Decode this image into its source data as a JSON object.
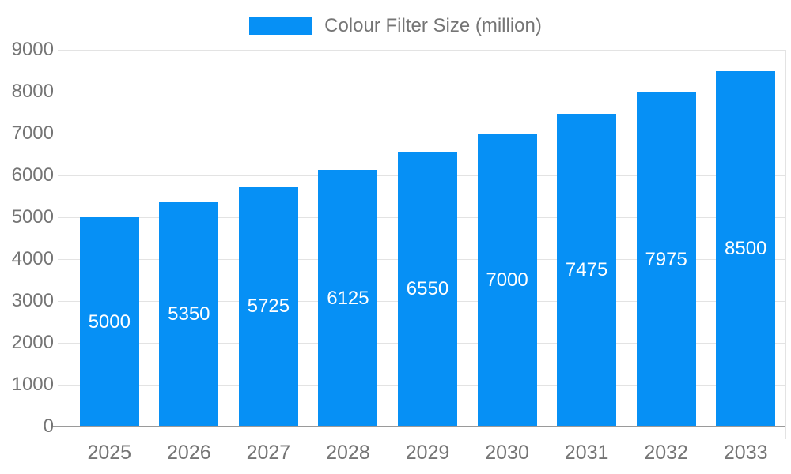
{
  "legend": {
    "label": "Colour Filter Size (million)"
  },
  "chart_data": {
    "type": "bar",
    "title": "",
    "categories": [
      "2025",
      "2026",
      "2027",
      "2028",
      "2029",
      "2030",
      "2031",
      "2032",
      "2033"
    ],
    "series": [
      {
        "name": "Colour Filter Size (million)",
        "values": [
          5000,
          5350,
          5725,
          6125,
          6550,
          7000,
          7475,
          7975,
          8500
        ]
      }
    ],
    "xlabel": "",
    "ylabel": "",
    "ylim": [
      0,
      9000
    ],
    "ytick_step": 1000,
    "yticks": [
      0,
      1000,
      2000,
      3000,
      4000,
      5000,
      6000,
      7000,
      8000,
      9000
    ],
    "grid": true,
    "legend_position": "top",
    "value_labels": "inside-bar-centered",
    "colors": {
      "bar": "#0690f5",
      "grid": "#e3e3e3",
      "axis": "#9a9a9a",
      "text": "#757575",
      "value_label": "#ffffff"
    }
  }
}
